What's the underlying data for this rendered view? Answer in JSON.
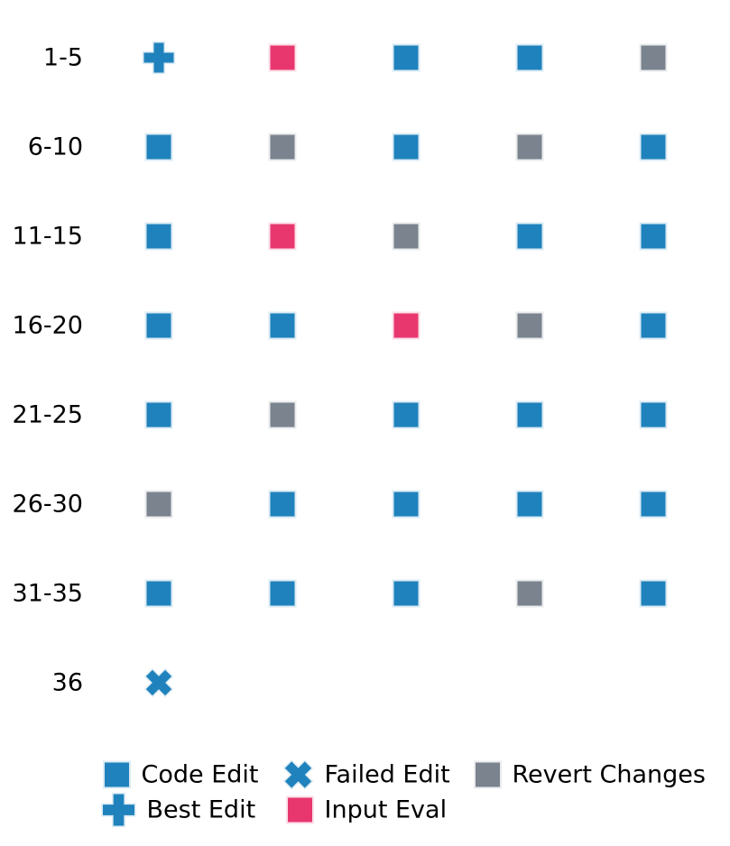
{
  "chart_data": {
    "type": "scatter",
    "title": "",
    "xlabel": "",
    "ylabel": "",
    "grid": false,
    "legend_position": "bottom",
    "row_labels": [
      "1-5",
      "6-10",
      "11-15",
      "16-20",
      "21-25",
      "26-30",
      "31-35",
      "36"
    ],
    "columns_per_row": 5,
    "rows": [
      {
        "label": "1-5",
        "markers": [
          "best",
          "input",
          "code",
          "code",
          "revert"
        ]
      },
      {
        "label": "6-10",
        "markers": [
          "code",
          "revert",
          "code",
          "revert",
          "code"
        ]
      },
      {
        "label": "11-15",
        "markers": [
          "code",
          "input",
          "revert",
          "code",
          "code"
        ]
      },
      {
        "label": "16-20",
        "markers": [
          "code",
          "code",
          "input",
          "revert",
          "code"
        ]
      },
      {
        "label": "21-25",
        "markers": [
          "code",
          "revert",
          "code",
          "code",
          "code"
        ]
      },
      {
        "label": "26-30",
        "markers": [
          "revert",
          "code",
          "code",
          "code",
          "code"
        ]
      },
      {
        "label": "31-35",
        "markers": [
          "code",
          "code",
          "code",
          "revert",
          "code"
        ]
      },
      {
        "label": "36",
        "markers": [
          "failed"
        ]
      }
    ],
    "legend": [
      {
        "key": "code",
        "label": "Code Edit",
        "shape": "square"
      },
      {
        "key": "failed",
        "label": "Failed Edit",
        "shape": "x"
      },
      {
        "key": "revert",
        "label": "Revert Changes",
        "shape": "square"
      },
      {
        "key": "best",
        "label": "Best Edit",
        "shape": "plus"
      },
      {
        "key": "input",
        "label": "Input Eval",
        "shape": "square"
      }
    ],
    "marker_shapes": {
      "code": "square",
      "failed": "x",
      "revert": "square",
      "best": "plus",
      "input": "square"
    },
    "colors": {
      "code": "#1f82bc",
      "failed": "#1f82bc",
      "best": "#1f82bc",
      "input": "#e8376f",
      "revert": "#7a838e"
    },
    "background": "#ffffff",
    "text_color": "#000000"
  }
}
